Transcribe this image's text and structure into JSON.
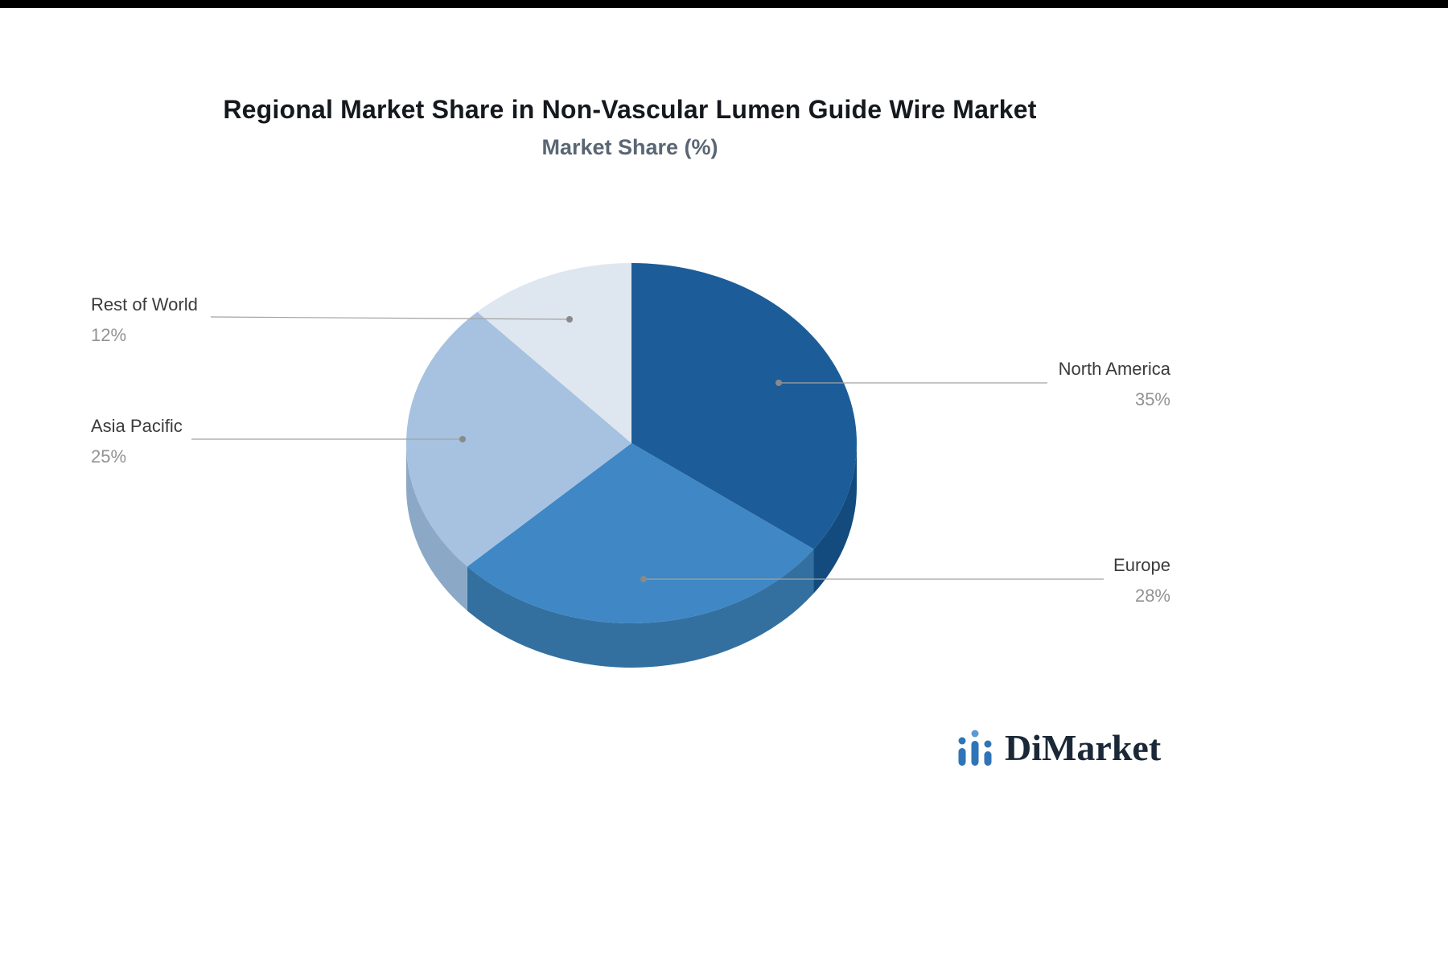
{
  "page": {
    "title": "Regional Market Share in Non-Vascular Lumen Guide Wire Market",
    "subtitle": "Market Share (%)"
  },
  "chart_data": {
    "type": "pie",
    "title": "Regional Market Share in Non-Vascular Lumen Guide Wire Market",
    "subtitle": "Market Share (%)",
    "unit": "%",
    "labels": [
      "North America",
      "Europe",
      "Asia Pacific",
      "Rest of World"
    ],
    "values": [
      35,
      28,
      25,
      12
    ],
    "labels_formatted": [
      "35%",
      "28%",
      "25%",
      "12%"
    ],
    "colors": [
      "#1c5d99",
      "#3f87c5",
      "#a6c2e0",
      "#dee6ef"
    ],
    "side_colors": [
      "#134b7e",
      "#33709f",
      "#8ba9c6",
      "#c4cfdc"
    ],
    "start_angle": "top",
    "direction": "clockwise",
    "legend": "none",
    "grid": "off",
    "style": "3d-pie",
    "total": 100
  },
  "leader": {
    "line_color": "#a2a2a2",
    "dot_color": "#8a8a8a"
  },
  "branding": {
    "logo_text": "DiMarket",
    "logo_icon": "bar-chart-icon",
    "icon_color": "#2f74b8",
    "icon_color_light": "#5d9ad2"
  }
}
